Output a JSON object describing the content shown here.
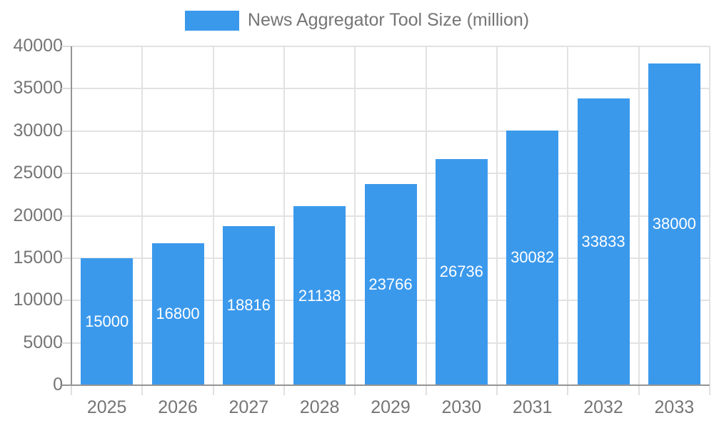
{
  "chart_data": {
    "type": "bar",
    "legend": "News Aggregator Tool Size (million)",
    "categories": [
      "2025",
      "2026",
      "2027",
      "2028",
      "2029",
      "2030",
      "2031",
      "2032",
      "2033"
    ],
    "values": [
      15000,
      16800,
      18816,
      21138,
      23766,
      26736,
      30082,
      33833,
      38000
    ],
    "value_labels": [
      "15000",
      "16800",
      "18816",
      "21138",
      "23766",
      "26736",
      "30082",
      "33833",
      "38000"
    ],
    "xlabel": "",
    "ylabel": "",
    "ylim": [
      0,
      40000
    ],
    "ytick_step": 5000,
    "ytick_labels": [
      "0",
      "5000",
      "10000",
      "15000",
      "20000",
      "25000",
      "30000",
      "35000",
      "40000"
    ],
    "grid": "on",
    "legend_position": "top-center",
    "bar_color": "#3b99ec",
    "axis_text_color": "#757575",
    "value_label_color": "#ffffff"
  }
}
